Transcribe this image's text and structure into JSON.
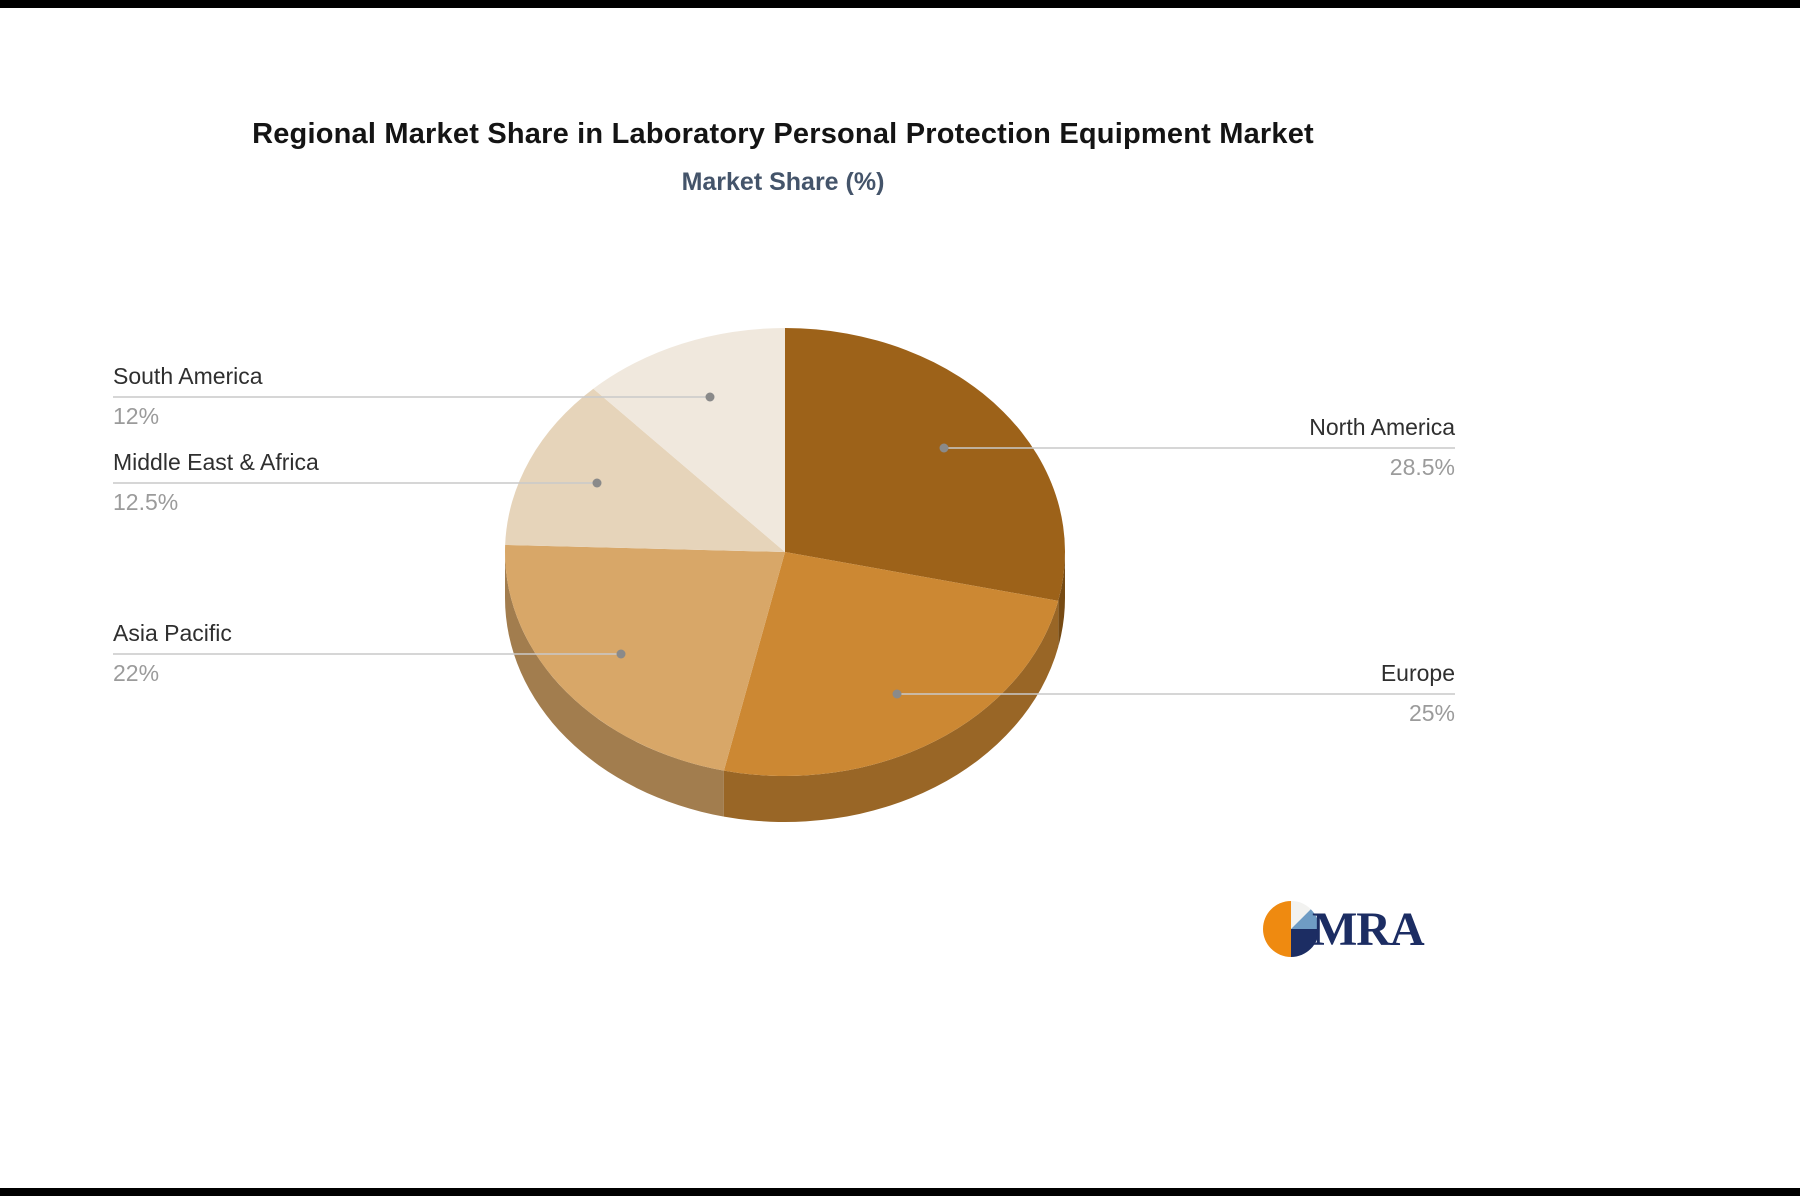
{
  "header": {
    "title": "Regional Market Share in Laboratory Personal Protection Equipment Market",
    "subtitle": "Market Share (%)"
  },
  "chart_data": {
    "type": "pie",
    "title": "Regional Market Share in Laboratory Personal Protection Equipment Market",
    "subtitle": "Market Share (%)",
    "labels": [
      "North America",
      "Europe",
      "Asia Pacific",
      "Middle East & Africa",
      "South America"
    ],
    "values": [
      28.5,
      25,
      22,
      12.5,
      12
    ],
    "value_labels": [
      "28.5%",
      "25%",
      "22%",
      "12.5%",
      "12%"
    ],
    "colors": [
      "#9d6219",
      "#cc8833",
      "#d8a768",
      "#e6d4ba",
      "#f0e8dd"
    ],
    "start_angle_deg": 0,
    "direction": "clockwise",
    "effect": "3d",
    "legend_position": "none",
    "labels_layout": "leader-lines"
  },
  "logo": {
    "text": "MRA"
  }
}
